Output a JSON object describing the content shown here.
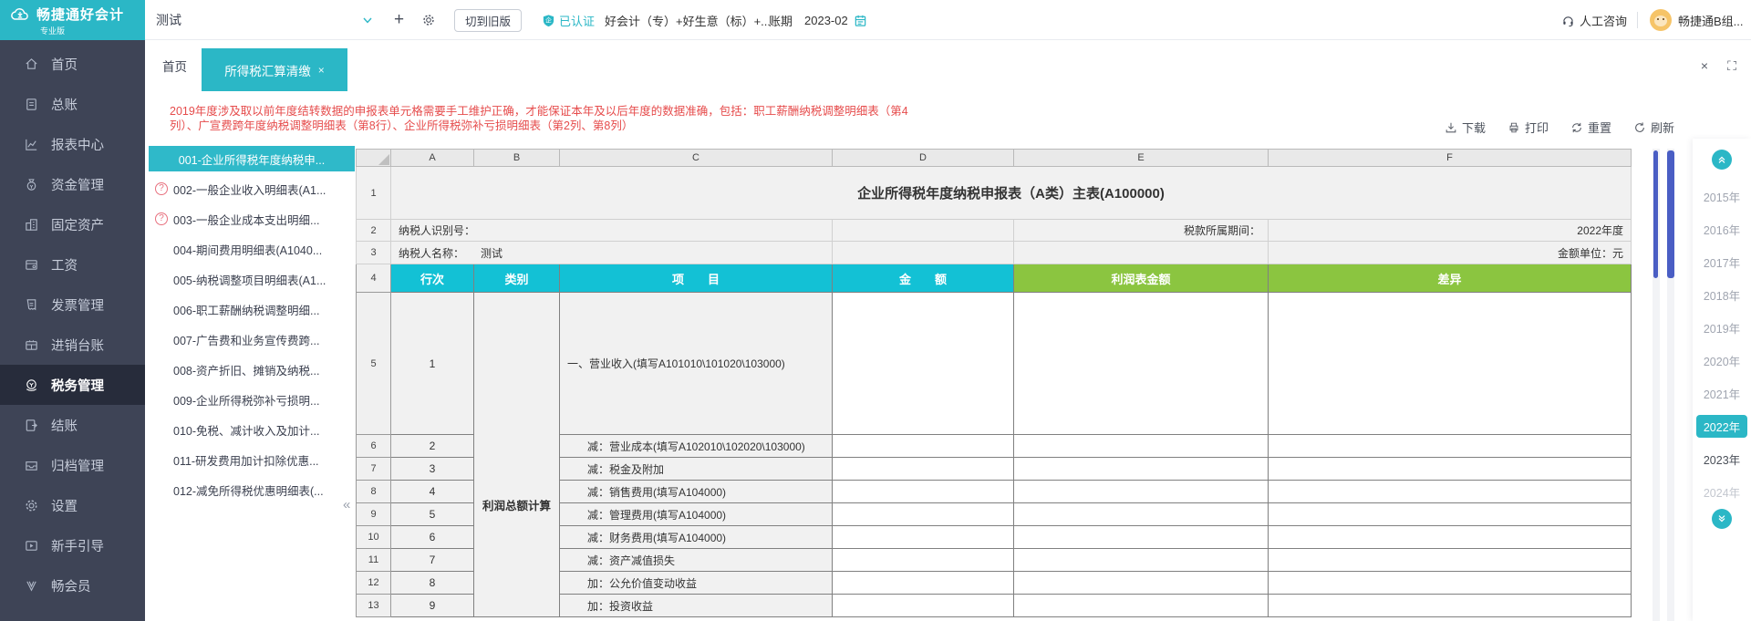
{
  "colors": {
    "accent_cyan": "#2bb7c6",
    "table_header_cyan": "#13c1d5",
    "table_header_green": "#8bc540",
    "warning_red": "#e64c4c",
    "sidebar_bg": "#3e4456",
    "scrollbar_blue": "#4a5ec4"
  },
  "topbar": {
    "logo_title": "畅捷通好会计",
    "logo_subtitle": "专业版",
    "workspace": "测试",
    "plus": "+",
    "switch_old": "切到旧版",
    "certified": "已认证",
    "products": "好会计（专）+好生意（标）+...",
    "period_label": "账期",
    "period_value": "2023-02",
    "support": "人工咨询",
    "username": "畅捷通B组..."
  },
  "tabs": {
    "home": "首页",
    "active": "所得税汇算清缴",
    "close": "×",
    "window_close": "×",
    "window_fullscreen": "⛶"
  },
  "warning": {
    "line1": "2019年度涉及取以前年度结转数据的申报表单元格需要手工维护正确，才能保证本年及以后年度的数据准确，包括：职工薪酬纳税调整明细表（第4",
    "line2": "列）、广宣费跨年度纳税调整明细表（第8行）、企业所得税弥补亏损明细表（第2列、第8列）"
  },
  "toolbar": {
    "download": "下载",
    "print": "打印",
    "reset": "重置",
    "refresh": "刷新"
  },
  "sidebar": {
    "items": [
      {
        "label": "首页",
        "icon": "home",
        "active": false
      },
      {
        "label": "总账",
        "icon": "ledger",
        "active": false
      },
      {
        "label": "报表中心",
        "icon": "report",
        "active": false
      },
      {
        "label": "资金管理",
        "icon": "fund",
        "active": false
      },
      {
        "label": "固定资产",
        "icon": "asset",
        "active": false
      },
      {
        "label": "工资",
        "icon": "wage",
        "active": false
      },
      {
        "label": "发票管理",
        "icon": "invoice",
        "active": false
      },
      {
        "label": "进销台账",
        "icon": "counter",
        "active": false
      },
      {
        "label": "税务管理",
        "icon": "tax",
        "active": true
      },
      {
        "label": "结账",
        "icon": "closing",
        "active": false
      },
      {
        "label": "归档管理",
        "icon": "archive",
        "active": false
      },
      {
        "label": "设置",
        "icon": "settings",
        "active": false
      },
      {
        "label": "新手引导",
        "icon": "guide",
        "active": false
      },
      {
        "label": "畅会员",
        "icon": "member",
        "active": false
      }
    ]
  },
  "report_list": [
    {
      "label": "001-企业所得税年度纳税申...",
      "selected": true,
      "warn": false
    },
    {
      "label": "002-一般企业收入明细表(A1...",
      "selected": false,
      "warn": true
    },
    {
      "label": "003-一般企业成本支出明细...",
      "selected": false,
      "warn": true
    },
    {
      "label": "004-期间费用明细表(A1040...",
      "selected": false,
      "warn": false
    },
    {
      "label": "005-纳税调整项目明细表(A1...",
      "selected": false,
      "warn": false
    },
    {
      "label": "006-职工薪酬纳税调整明细...",
      "selected": false,
      "warn": false
    },
    {
      "label": "007-广告费和业务宣传费跨...",
      "selected": false,
      "warn": false
    },
    {
      "label": "008-资产折旧、摊销及纳税...",
      "selected": false,
      "warn": false
    },
    {
      "label": "009-企业所得税弥补亏损明...",
      "selected": false,
      "warn": false
    },
    {
      "label": "010-免税、减计收入及加计...",
      "selected": false,
      "warn": false
    },
    {
      "label": "011-研发费用加计扣除优惠...",
      "selected": false,
      "warn": false
    },
    {
      "label": "012-减免所得税优惠明细表(...",
      "selected": false,
      "warn": false
    }
  ],
  "sheet": {
    "col_letters": [
      "A",
      "B",
      "C",
      "D",
      "E",
      "F"
    ],
    "fixed_row_numbers": [
      "1",
      "2",
      "3",
      "4"
    ],
    "title": "企业所得税年度纳税申报表（A类）主表(A100000)",
    "taxpayer_id_label": "纳税人识别号：",
    "tax_period_label": "税款所属期间：",
    "tax_period_value": "2022年度",
    "taxpayer_name_label": "纳税人名称：",
    "taxpayer_name_value": "测试",
    "unit_label": "金额单位：元",
    "header": {
      "line_no": "行次",
      "category": "类别",
      "item": "项　　目",
      "amount": "金　　额",
      "profit_amount": "利润表金额",
      "diff": "差异"
    },
    "category_merged": "利润总额计算",
    "rows": [
      {
        "row": "5",
        "line": "1",
        "item": "一、营业收入(填写A101010\\101020\\103000)"
      },
      {
        "row": "6",
        "line": "2",
        "item": "减：营业成本(填写A102010\\102020\\103000)"
      },
      {
        "row": "7",
        "line": "3",
        "item": "减：税金及附加"
      },
      {
        "row": "8",
        "line": "4",
        "item": "减：销售费用(填写A104000)"
      },
      {
        "row": "9",
        "line": "5",
        "item": "减：管理费用(填写A104000)"
      },
      {
        "row": "10",
        "line": "6",
        "item": "减：财务费用(填写A104000)"
      },
      {
        "row": "11",
        "line": "7",
        "item": "减：资产减值损失"
      },
      {
        "row": "12",
        "line": "8",
        "item": "加：公允价值变动收益"
      },
      {
        "row": "13",
        "line": "9",
        "item": "加：投资收益"
      }
    ]
  },
  "year_panel": {
    "years": [
      {
        "label": "2015年",
        "state": "normal"
      },
      {
        "label": "2016年",
        "state": "normal"
      },
      {
        "label": "2017年",
        "state": "normal"
      },
      {
        "label": "2018年",
        "state": "normal"
      },
      {
        "label": "2019年",
        "state": "normal"
      },
      {
        "label": "2020年",
        "state": "normal"
      },
      {
        "label": "2021年",
        "state": "normal"
      },
      {
        "label": "2022年",
        "state": "selected"
      },
      {
        "label": "2023年",
        "state": "dark"
      },
      {
        "label": "2024年",
        "state": "faded"
      }
    ]
  }
}
